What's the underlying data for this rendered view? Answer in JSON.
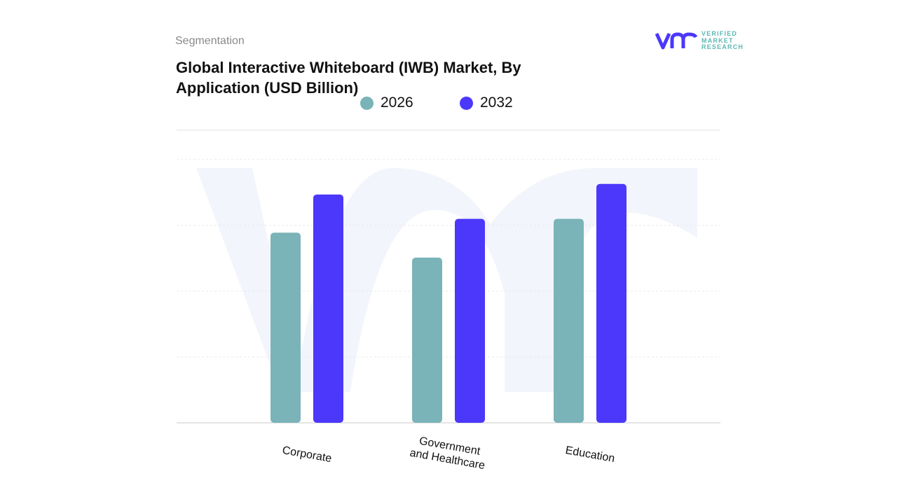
{
  "header": {
    "segment_label": "Segmentation",
    "title": "Global Interactive Whiteboard (IWB) Market, By Application (USD Billion)"
  },
  "logo": {
    "name": "VERIFIED MARKET RESEARCH",
    "line1": "VERIFIED",
    "line2": "MARKET",
    "line3": "RESEARCH",
    "icon": "vmr-logo-icon"
  },
  "colors": {
    "series_2026": "#7ab3b8",
    "series_2032": "#4b38fb",
    "grid": "#e6e6e6",
    "watermark": "#f3f5fc"
  },
  "chart_data": {
    "type": "bar",
    "title": "Global Interactive Whiteboard (IWB) Market, By Application (USD Billion)",
    "categories": [
      "Corporate",
      "Government and Healthcare",
      "Education"
    ],
    "series": [
      {
        "name": "2026",
        "values": [
          2.89,
          2.51,
          3.1
        ]
      },
      {
        "name": "2032",
        "values": [
          3.47,
          3.1,
          3.63
        ]
      }
    ],
    "ylim": [
      0,
      4
    ],
    "grid": true,
    "legend": "top",
    "xlabel": "",
    "ylabel": ""
  }
}
